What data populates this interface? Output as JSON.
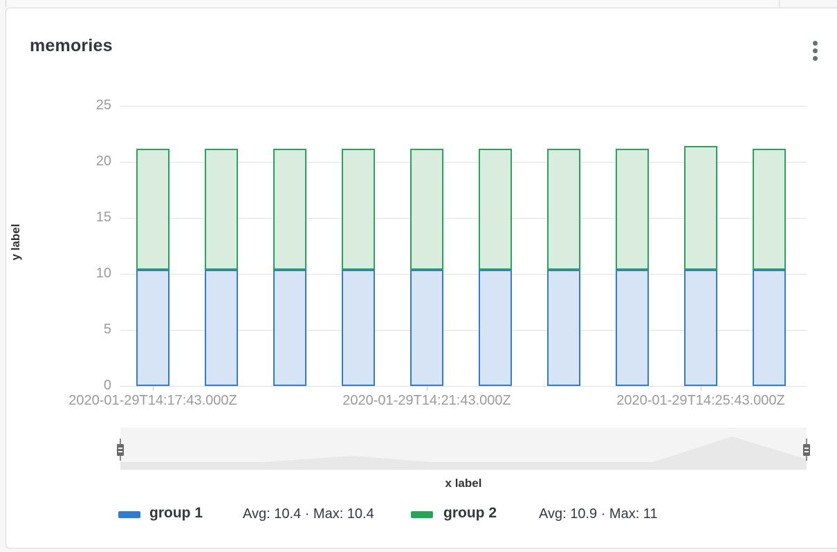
{
  "panel": {
    "title": "memories",
    "options_menu": "panel options"
  },
  "chart_data": {
    "type": "bar",
    "stacked": true,
    "title": "memories",
    "xlabel": "x label",
    "ylabel": "y label",
    "ylim": [
      0,
      25
    ],
    "yticks": [
      0,
      5,
      10,
      15,
      20,
      25
    ],
    "grid": true,
    "bar_count": 10,
    "xticks": {
      "labels": [
        "2020-01-29T14:17:43.000Z",
        "2020-01-29T14:21:43.000Z",
        "2020-01-29T14:25:43.000Z"
      ],
      "bar_indexes": [
        0,
        4,
        8
      ]
    },
    "series": [
      {
        "name": "group 1",
        "color": "#2F7DD1",
        "fill": "#D6E4F6",
        "values": [
          10.4,
          10.4,
          10.4,
          10.4,
          10.4,
          10.4,
          10.4,
          10.4,
          10.4,
          10.4
        ]
      },
      {
        "name": "group 2",
        "color": "#23A757",
        "fill": "#D9ECDD",
        "values": [
          10.8,
          10.8,
          10.8,
          10.8,
          10.8,
          10.8,
          10.8,
          10.8,
          11,
          10.8
        ]
      }
    ],
    "legend_position": "bottom",
    "legend": [
      {
        "label": "group 1",
        "stats": "Avg: 10.4 · Max: 10.4"
      },
      {
        "label": "group 2",
        "stats": "Avg: 10.9 · Max: 11"
      }
    ]
  },
  "colors": {
    "tick_text": "#9a9a9a",
    "gridline": "#e1e1e1",
    "card_border": "#d8d8d8",
    "kebab": "#69707d",
    "brush_bg": "#f4f4f5",
    "brush_area": "#e8e8e9"
  }
}
